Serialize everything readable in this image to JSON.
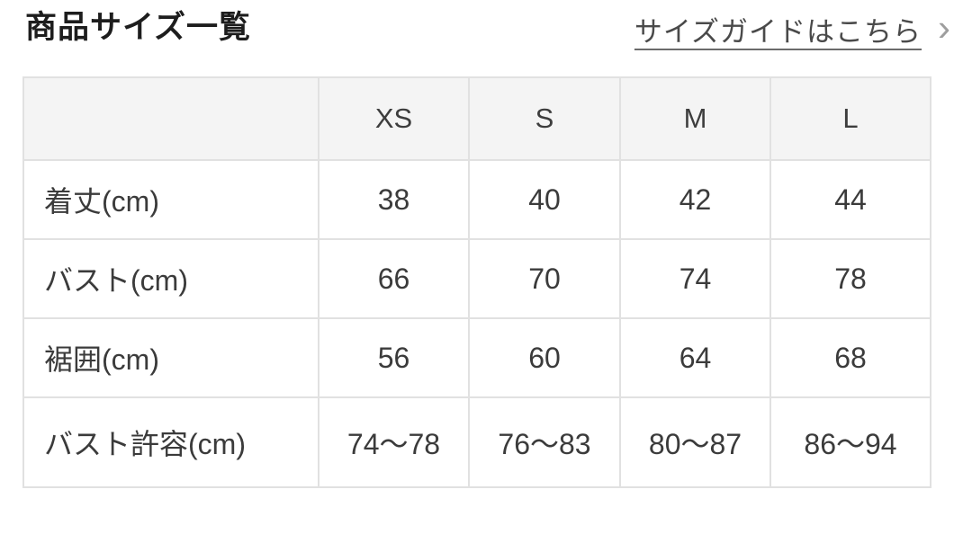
{
  "header": {
    "title": "商品サイズ一覧",
    "size_guide_link": "サイズガイドはこちら",
    "chevron_glyph": "›"
  },
  "table": {
    "columns": [
      "",
      "XS",
      "S",
      "M",
      "L"
    ],
    "rows": [
      {
        "label": "着丈(cm)",
        "values": [
          "38",
          "40",
          "42",
          "44"
        ]
      },
      {
        "label": "バスト(cm)",
        "values": [
          "66",
          "70",
          "74",
          "78"
        ]
      },
      {
        "label": "裾囲(cm)",
        "values": [
          "56",
          "60",
          "64",
          "68"
        ]
      },
      {
        "label": "バスト許容(cm)",
        "values": [
          "74〜78",
          "76〜83",
          "80〜87",
          "86〜94"
        ]
      }
    ]
  },
  "colors": {
    "title_text": "#1d1d1d",
    "link_text": "#4a4a4a",
    "chevron": "#9e9e9e",
    "table_border": "#e1e1e1",
    "header_row_bg": "#f4f4f4",
    "cell_text": "#3b3b3b",
    "page_bg": "#ffffff"
  }
}
